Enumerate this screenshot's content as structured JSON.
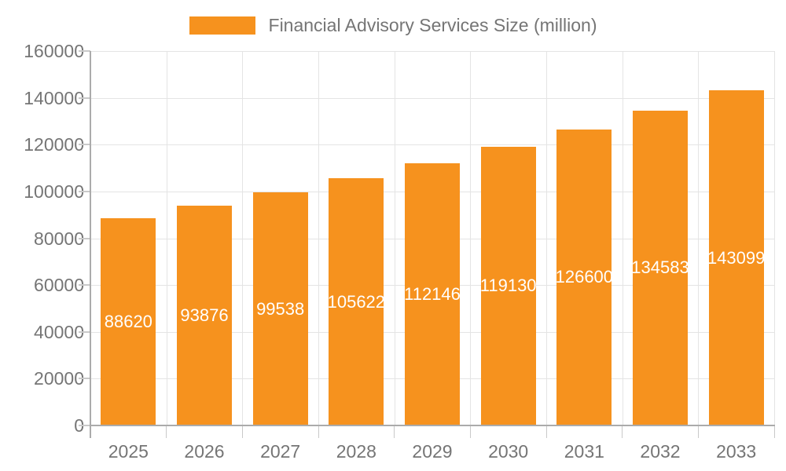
{
  "legend": {
    "label": "Financial Advisory Services Size (million)"
  },
  "chart_data": {
    "type": "bar",
    "title": "",
    "legend_label": "Financial Advisory Services Size (million)",
    "legend_position": "top",
    "categories": [
      "2025",
      "2026",
      "2027",
      "2028",
      "2029",
      "2030",
      "2031",
      "2032",
      "2033"
    ],
    "series": [
      {
        "name": "Financial Advisory Services Size (million)",
        "values": [
          88620,
          93876,
          99538,
          105622,
          112146,
          119130,
          126600,
          134583,
          143099
        ]
      }
    ],
    "bar_labels": [
      "88620",
      "93876",
      "99538",
      "105622",
      "112146",
      "119130",
      "126600",
      "134583",
      "143099"
    ],
    "xlabel": "",
    "ylabel": "",
    "ylim": [
      0,
      160000
    ],
    "ytick_interval": 20000,
    "ytick_labels": [
      "0",
      "20000",
      "40000",
      "60000",
      "80000",
      "100000",
      "120000",
      "140000",
      "160000"
    ],
    "grid": true,
    "colors": {
      "bar": "#F6921E",
      "bar_value_text": "#FFFFFF",
      "axis_text": "#757575",
      "grid_line": "#E4E4E4",
      "axis_line": "#ABABAB",
      "tick_line": "#C9C9C9",
      "background": "#FFFFFF"
    }
  }
}
